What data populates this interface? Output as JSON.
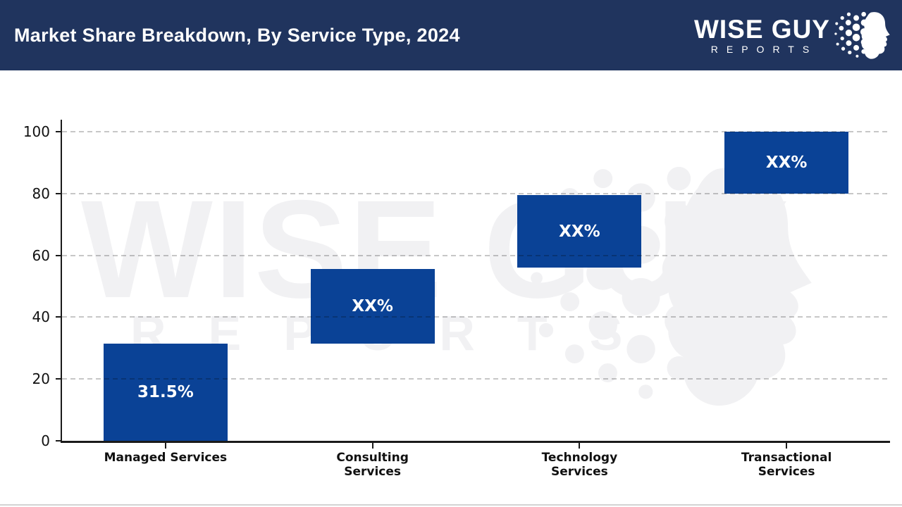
{
  "header": {
    "title": "Market Share Breakdown, By Service Type, 2024",
    "logo": {
      "line1": "WISE GUY",
      "line2": "REPORTS"
    },
    "bg_color": "#20345e"
  },
  "watermark": {
    "line1": "WISE GUY",
    "line2": "REPORTS"
  },
  "chart_data": {
    "type": "bar",
    "subtype": "floating-waterfall",
    "title": "Market Share Breakdown, By Service Type, 2024",
    "categories": [
      "Managed Services",
      "Consulting Services",
      "Technology Services",
      "Transactional Services"
    ],
    "categories_lines": [
      [
        "Managed Services"
      ],
      [
        "Consulting",
        "Services"
      ],
      [
        "Technology",
        "Services"
      ],
      [
        "Transactional",
        "Services"
      ]
    ],
    "segments": [
      {
        "category": "Managed Services",
        "start": 0,
        "end": 31.5,
        "value_label": "31.5%"
      },
      {
        "category": "Consulting Services",
        "start": 31.5,
        "end": 55.5,
        "value_label": "XX%"
      },
      {
        "category": "Technology Services",
        "start": 56,
        "end": 79.5,
        "value_label": "XX%"
      },
      {
        "category": "Transactional Services",
        "start": 80,
        "end": 100,
        "value_label": "XX%"
      }
    ],
    "xlabel": "",
    "ylabel": "",
    "ylim": [
      0,
      100
    ],
    "yticks": [
      0,
      20,
      40,
      60,
      80,
      100
    ],
    "grid": "dashed horizontal",
    "legend": "none",
    "bar_color": "#0a4296",
    "axis_color": "#1a1a1a"
  }
}
